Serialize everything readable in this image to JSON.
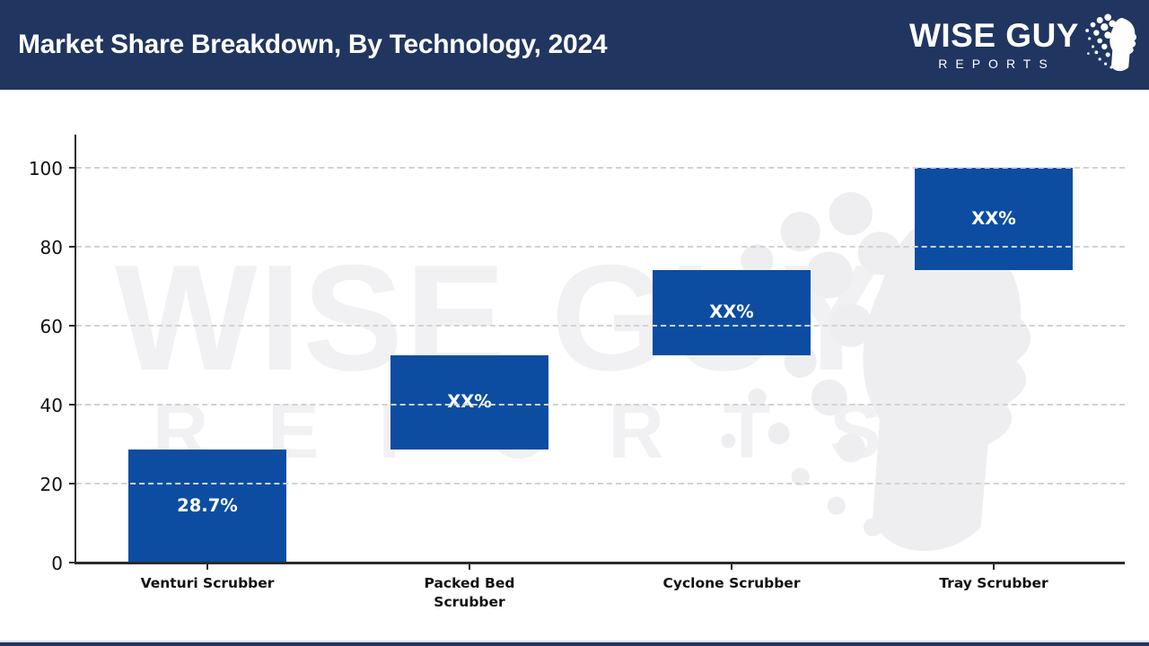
{
  "header": {
    "title": "Market Share Breakdown, By Technology, 2024",
    "logo": {
      "name": "WISE GUY",
      "sub": "REPORTS"
    }
  },
  "watermark": {
    "line1": "WISE GUY",
    "line2": "REPORTS"
  },
  "colors": {
    "header_bg": "#203560",
    "bar_blue": "#0c4da2",
    "axis": "#2b2b2b",
    "grid": "#d2d2d2",
    "tick_text": "#111111",
    "bar_label_text": "#ffffff",
    "watermark_gray": "#f1f1f3"
  },
  "chart_data": {
    "type": "bar",
    "variant": "waterfall",
    "title": "Market Share Breakdown, By Technology, 2024",
    "categories": [
      "Venturi Scrubber",
      "Packed Bed Scrubber",
      "Cyclone Scrubber",
      "Tray Scrubber"
    ],
    "categories_display": [
      "Venturi Scrubber",
      "Packed Bed\nScrubber",
      "Cyclone Scrubber",
      "Tray Scrubber"
    ],
    "segments": [
      [
        0,
        28.7
      ],
      [
        28.7,
        52.5
      ],
      [
        52.5,
        74.1
      ],
      [
        74.1,
        100
      ]
    ],
    "values": [
      28.7,
      23.8,
      21.6,
      25.9
    ],
    "bar_labels": [
      "28.7%",
      "XX%",
      "XX%",
      "XX%"
    ],
    "yticks": [
      0,
      20,
      40,
      60,
      80,
      100
    ],
    "ylim": [
      0,
      105
    ],
    "xlabel": "",
    "ylabel": "",
    "grid": "horizontal-dashed",
    "legend": "none"
  }
}
